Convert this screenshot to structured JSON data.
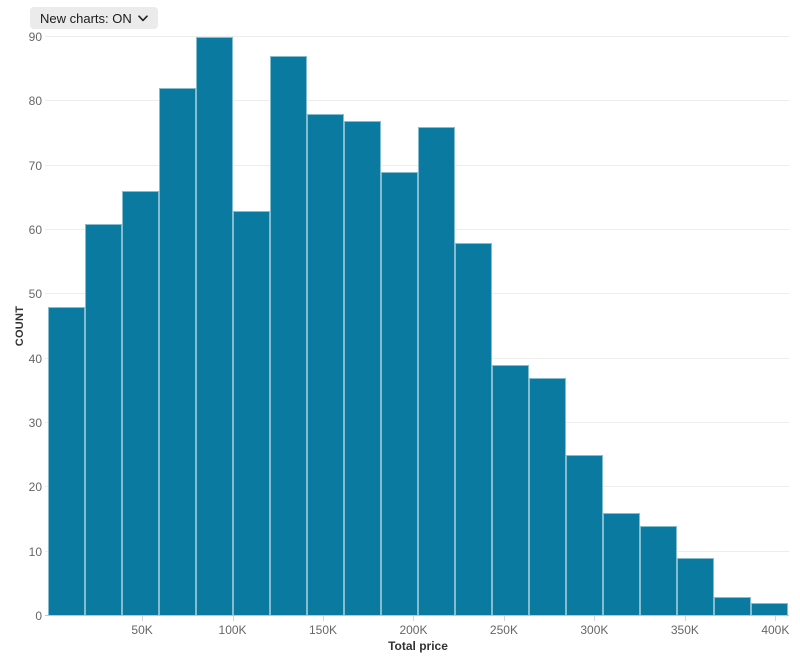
{
  "controls": {
    "new_charts_label": "New charts: ON"
  },
  "chart_data": {
    "type": "bar",
    "subtype": "histogram",
    "title": "",
    "xlabel": "Total price",
    "ylabel": "COUNT",
    "legend": "none",
    "grid": "horizontal",
    "bar_color": "#0a7aa0",
    "bar_border_color": "rgba(255,255,255,0.5)",
    "ylim": [
      0,
      90
    ],
    "y_ticks": [
      0,
      10,
      20,
      30,
      40,
      50,
      60,
      70,
      80,
      90
    ],
    "xlim": [
      -2000,
      407000
    ],
    "x_ticks": [
      {
        "value": 50000,
        "label": "50K"
      },
      {
        "value": 100000,
        "label": "100K"
      },
      {
        "value": 150000,
        "label": "150K"
      },
      {
        "value": 200000,
        "label": "200K"
      },
      {
        "value": 250000,
        "label": "250K"
      },
      {
        "value": 300000,
        "label": "300K"
      },
      {
        "value": 350000,
        "label": "350K"
      },
      {
        "value": 400000,
        "label": "400K"
      }
    ],
    "bins": 20,
    "values": [
      48,
      61,
      66,
      82,
      90,
      63,
      87,
      78,
      77,
      69,
      76,
      58,
      39,
      37,
      25,
      16,
      14,
      9,
      3,
      2
    ]
  }
}
